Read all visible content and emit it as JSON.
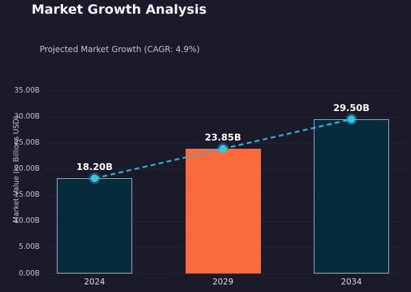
{
  "header": {
    "title": "Market Growth Analysis",
    "subtitle": "Projected Market Growth (CAGR: 4.9%)"
  },
  "chart_data": {
    "type": "bar",
    "title": "Market Growth Analysis",
    "subtitle": "Projected Market Growth (CAGR: 4.9%)",
    "categories": [
      "2024",
      "2029",
      "2034"
    ],
    "values": [
      18.2,
      23.85,
      29.5
    ],
    "value_labels": [
      "18.20B",
      "23.85B",
      "29.50B"
    ],
    "xlabel": "",
    "ylabel": "Market Value (in Billions USD)",
    "ylim": [
      0,
      35
    ],
    "yticks": [
      0,
      5,
      10,
      15,
      20,
      25,
      30,
      35
    ],
    "ytick_labels": [
      "0.00B",
      "5.00B",
      "10.00B",
      "15.00B",
      "20.00B",
      "25.00B",
      "30.00B",
      "35.00B"
    ],
    "grid": "faint horizontal lines at each y tick",
    "legend": "none",
    "trend_overlay": "cyan dashed line with circular markers connecting bar tops",
    "colors": {
      "background": "#1b1a2b",
      "bar_fills": [
        "#062b3c",
        "#fb6a3a",
        "#062b3c"
      ],
      "bar_edges": [
        "#a6bcc3",
        "#fb6a3a",
        "#a6bcc3"
      ],
      "trend_line": "#2db4d2",
      "marker": "#38c4e0",
      "title_text": "#f3f3f5",
      "subtitle_text": "#c5c4cb",
      "tick_text": "#c7c6ce",
      "value_label_text": "#ffffff"
    }
  }
}
